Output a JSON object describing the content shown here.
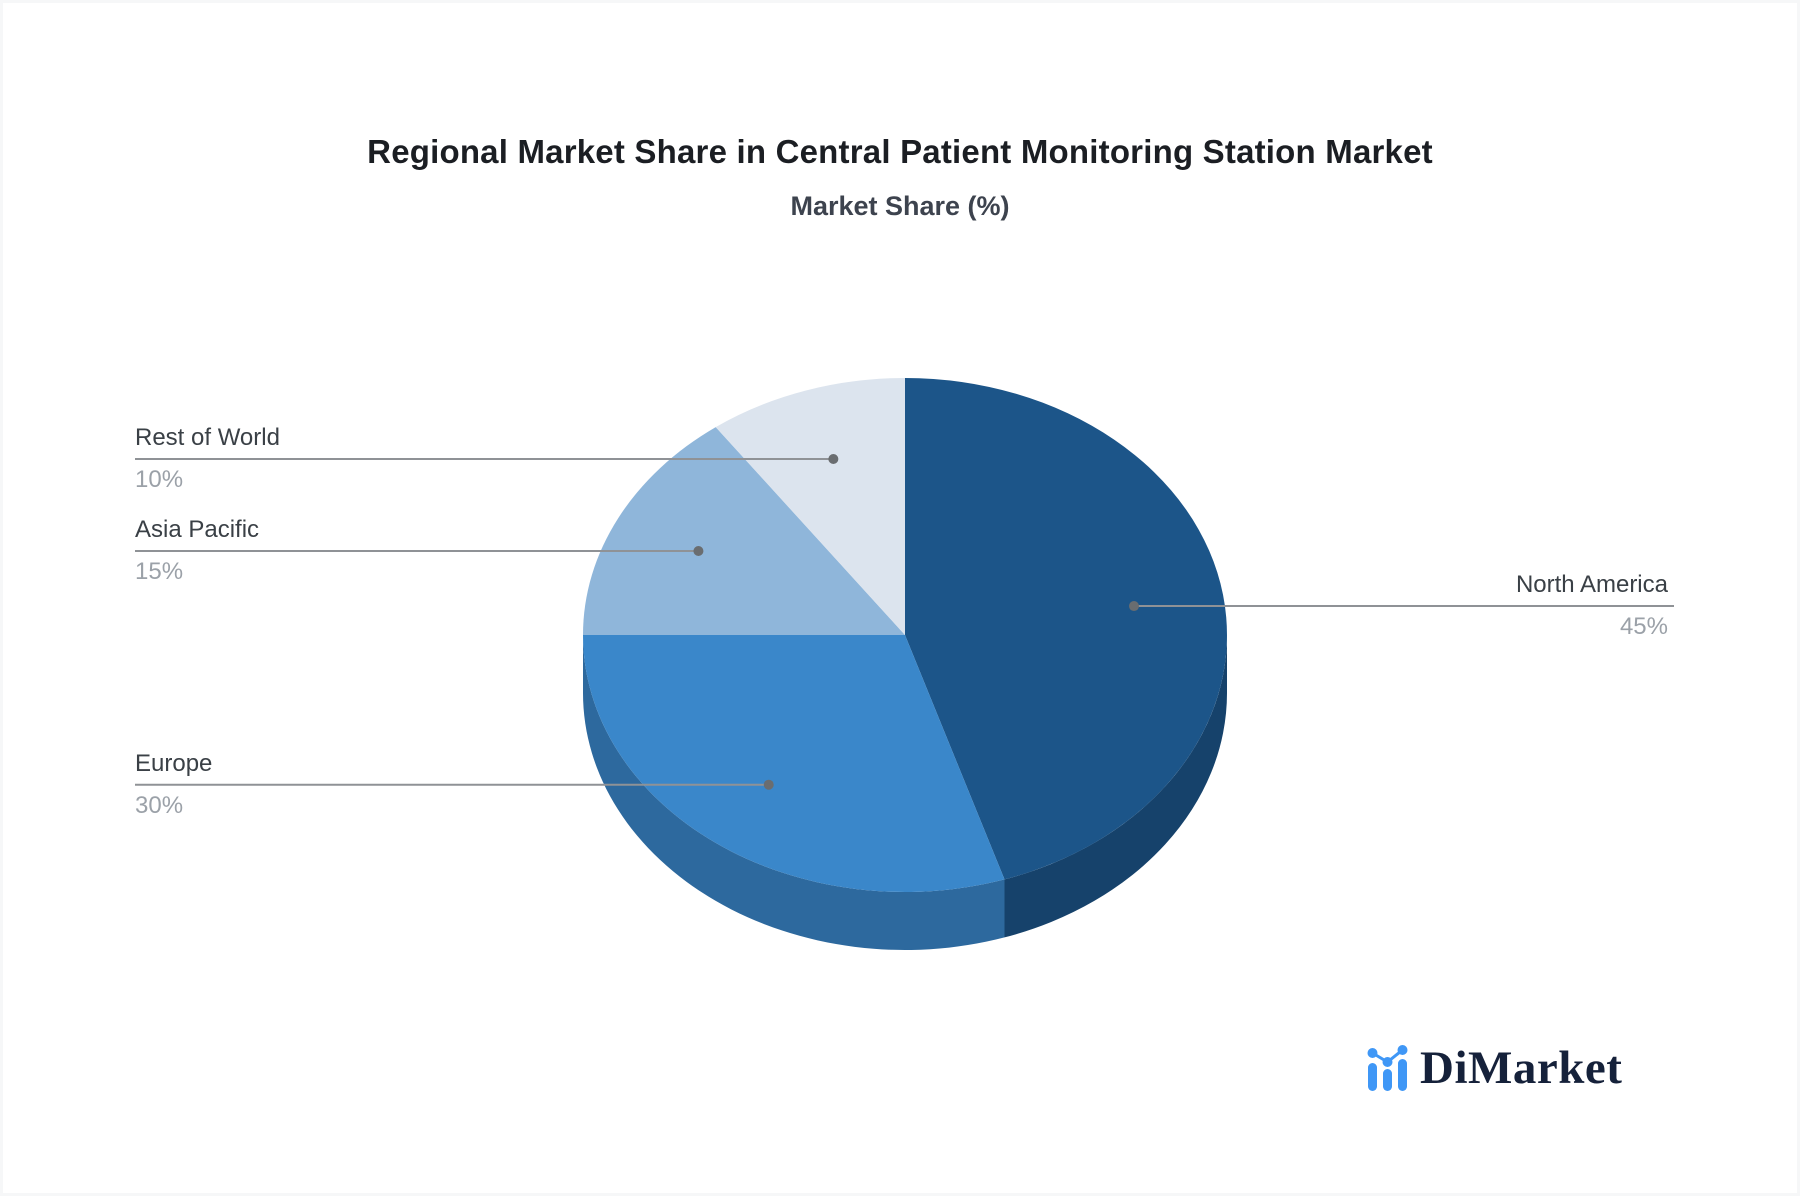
{
  "header": {
    "title": "Regional Market Share in Central Patient Monitoring Station Market",
    "subtitle": "Market Share (%)"
  },
  "chart_data": {
    "type": "pie",
    "style": "3d-extruded",
    "title": "Regional Market Share in Central Patient Monitoring Station Market",
    "subtitle": "Market Share (%)",
    "unit": "%",
    "start_angle_deg": 0,
    "direction": "clockwise",
    "labels": [
      "North America",
      "Europe",
      "Asia Pacific",
      "Rest of World"
    ],
    "values": [
      45,
      30,
      15,
      10
    ],
    "colors": [
      "#1c5589",
      "#3a87ca",
      "#8fb6da",
      "#dce4ee"
    ],
    "legend_position": "none",
    "callout_labels": true
  },
  "callouts": [
    {
      "label": "North America",
      "value_label": "45%",
      "side": "right"
    },
    {
      "label": "Europe",
      "value_label": "30%",
      "side": "left"
    },
    {
      "label": "Asia Pacific",
      "value_label": "15%",
      "side": "left"
    },
    {
      "label": "Rest of World",
      "value_label": "10%",
      "side": "left"
    }
  ],
  "logo": {
    "text": "DiMarket",
    "icon": "bar-line-chart-icon",
    "icon_color": "#3f97f6",
    "text_color": "#15213a"
  },
  "colors": {
    "background": "#ffffff",
    "title_text": "#1b1e23",
    "subtitle_text": "#3d434e",
    "callout_line": "#8f9296",
    "callout_dot": "#6a6d70",
    "label_text": "#3a4046",
    "value_text": "#9ba1a8"
  }
}
